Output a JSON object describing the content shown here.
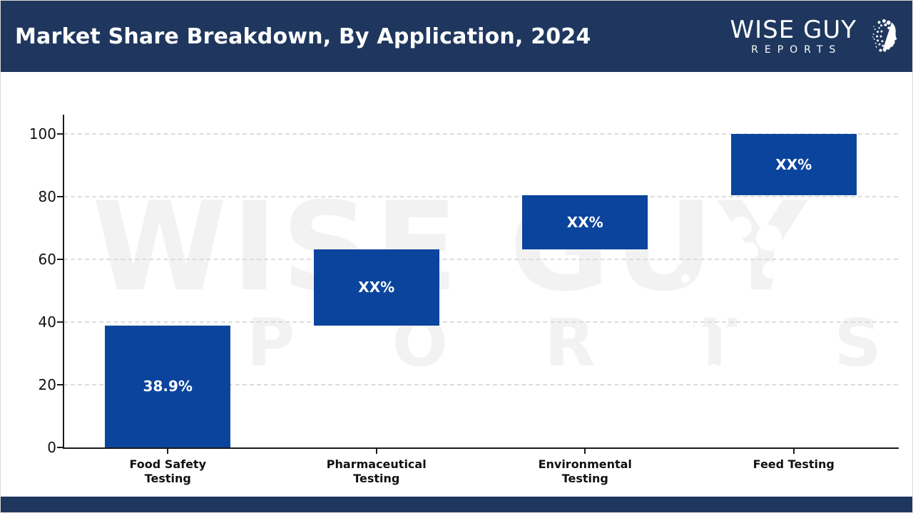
{
  "header": {
    "title": "Market Share Breakdown, By Application, 2024",
    "bg_color": "#1f375e",
    "logo": {
      "line1": "WISE GUY",
      "line2": "REPORTS"
    }
  },
  "watermark": {
    "line1": "WISE GUY",
    "line2": "P O R T S"
  },
  "footer": {
    "bg_color": "#1f375e"
  },
  "chart_data": {
    "type": "bar",
    "subtype": "waterfall",
    "title": "Market Share Breakdown, By Application, 2024",
    "categories": [
      [
        "Food Safety",
        "Testing"
      ],
      [
        "Pharmaceutical",
        "Testing"
      ],
      [
        "Environmental",
        "Testing"
      ],
      [
        "Feed Testing"
      ]
    ],
    "segments": [
      {
        "category": "Food Safety Testing",
        "start": 0,
        "end": 38.9,
        "label": "38.9%"
      },
      {
        "category": "Pharmaceutical Testing",
        "start": 38.9,
        "end": 63.2,
        "label": "XX%"
      },
      {
        "category": "Environmental Testing",
        "start": 63.2,
        "end": 80.5,
        "label": "XX%"
      },
      {
        "category": "Feed Testing",
        "start": 80.5,
        "end": 100,
        "label": "XX%"
      }
    ],
    "xlabel": "",
    "ylabel": "",
    "ylim": [
      0,
      100
    ],
    "yticks": [
      0,
      20,
      40,
      60,
      80,
      100
    ],
    "grid": "horizontal-dashed",
    "legend": "none",
    "bar_color": "#0b449c",
    "grid_color": "#dcdcdc",
    "axis_color": "#1a1a1a",
    "value_label_color": "#ffffff"
  }
}
